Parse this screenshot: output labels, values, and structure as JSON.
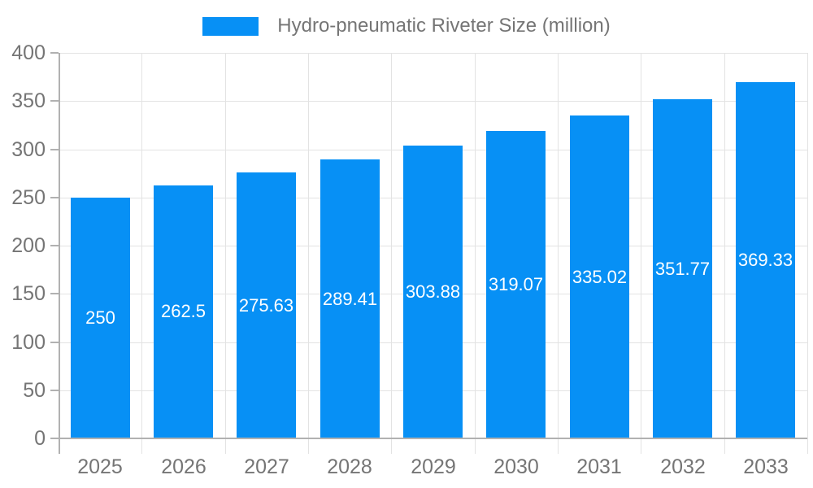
{
  "chart_data": {
    "type": "bar",
    "title": "Hydro-pneumatic Riveter Size (million)",
    "categories": [
      "2025",
      "2026",
      "2027",
      "2028",
      "2029",
      "2030",
      "2031",
      "2032",
      "2033"
    ],
    "values": [
      250,
      262.5,
      275.63,
      289.41,
      303.88,
      319.07,
      335.02,
      351.77,
      369.33
    ],
    "value_labels": [
      "250",
      "262.5",
      "275.63",
      "289.41",
      "303.88",
      "319.07",
      "335.02",
      "351.77",
      "369.33"
    ],
    "xlabel": "",
    "ylabel": "",
    "ylim": [
      0,
      400
    ],
    "y_tick_step": 50,
    "y_ticks": [
      "0",
      "50",
      "100",
      "150",
      "200",
      "250",
      "300",
      "350",
      "400"
    ],
    "grid": true,
    "legend_position": "top",
    "colors": {
      "bar": "#0790F5",
      "axis": "#b1b1b1",
      "grid": "#e3e3e3",
      "label": "#757575",
      "value_label": "#ffffff",
      "background": "#ffffff"
    }
  }
}
